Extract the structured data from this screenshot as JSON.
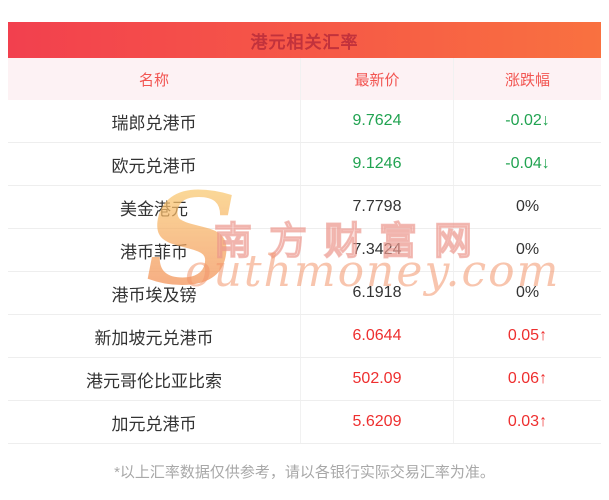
{
  "title": "港元相关汇率",
  "table": {
    "headers": [
      "名称",
      "最新价",
      "涨跌幅"
    ],
    "rows": [
      {
        "name": "瑞郎兑港币",
        "price": "9.7624",
        "change": "-0.02↓",
        "trend": "down"
      },
      {
        "name": "欧元兑港币",
        "price": "9.1246",
        "change": "-0.04↓",
        "trend": "down"
      },
      {
        "name": "美金港元",
        "price": "7.7798",
        "change": "0%",
        "trend": "flat"
      },
      {
        "name": "港币菲币",
        "price": "7.3424",
        "change": "0%",
        "trend": "flat"
      },
      {
        "name": "港币埃及镑",
        "price": "6.1918",
        "change": "0%",
        "trend": "flat"
      },
      {
        "name": "新加坡元兑港币",
        "price": "6.0644",
        "change": "0.05↑",
        "trend": "up"
      },
      {
        "name": "港元哥伦比亚比索",
        "price": "502.09",
        "change": "0.06↑",
        "trend": "up"
      },
      {
        "name": "加元兑港币",
        "price": "5.6209",
        "change": "0.03↑",
        "trend": "up"
      }
    ]
  },
  "watermark": {
    "swoosh": "S",
    "cjk": "南方财富网",
    "latin": "outhmoney.com"
  },
  "footer": "*以上汇率数据仅供参考，请以各银行实际交易汇率为准。",
  "colors": {
    "title_gradient_left": "#f2404e",
    "title_gradient_right": "#f97140",
    "title_text": "#c2323c",
    "header_bg": "#fdf2f4",
    "header_text": "#f25551",
    "value_up": "#ee2f2f",
    "value_down": "#21a351",
    "value_flat": "#333333",
    "row_border": "#eeeeee",
    "footer_text": "#a8a8a8"
  },
  "chart_data": {
    "type": "table",
    "title": "港元相关汇率",
    "columns": [
      "名称",
      "最新价",
      "涨跌幅"
    ],
    "rows": [
      [
        "瑞郎兑港币",
        9.7624,
        "-0.02↓"
      ],
      [
        "欧元兑港币",
        9.1246,
        "-0.04↓"
      ],
      [
        "美金港元",
        7.7798,
        "0%"
      ],
      [
        "港币菲币",
        7.3424,
        "0%"
      ],
      [
        "港币埃及镑",
        6.1918,
        "0%"
      ],
      [
        "新加坡元兑港币",
        6.0644,
        "0.05↑"
      ],
      [
        "港元哥伦比亚比索",
        502.09,
        "0.06↑"
      ],
      [
        "加元兑港币",
        5.6209,
        "0.03↑"
      ]
    ],
    "note": "*以上汇率数据仅供参考，请以各银行实际交易汇率为准。"
  }
}
